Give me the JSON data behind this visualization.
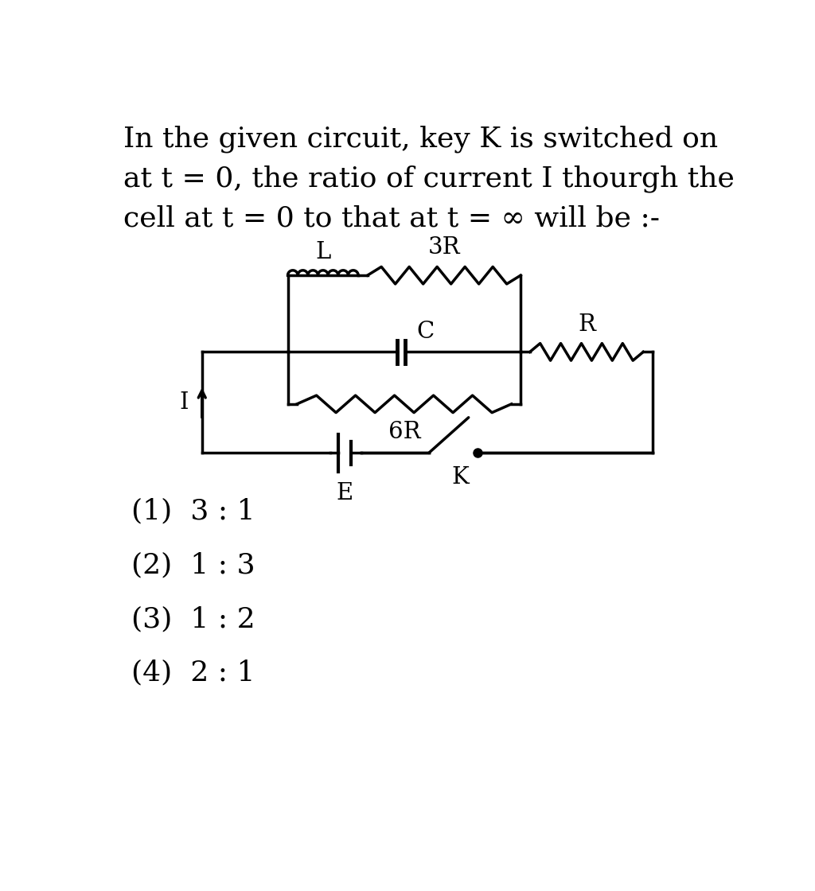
{
  "title_line1": "In the given circuit, key K is switched on",
  "title_line2": "at t = 0, the ratio of current I thourgh the",
  "title_line3": "cell at t = 0 to that at t = ∞ will be :-",
  "options": [
    "(1)  3 : 1",
    "(2)  1 : 3",
    "(3)  1 : 2",
    "(4)  2 : 1"
  ],
  "bg_color": "#ffffff",
  "text_color": "#000000",
  "line_color": "#000000",
  "font_size_text": 26,
  "font_size_options": 26,
  "lw": 2.5
}
